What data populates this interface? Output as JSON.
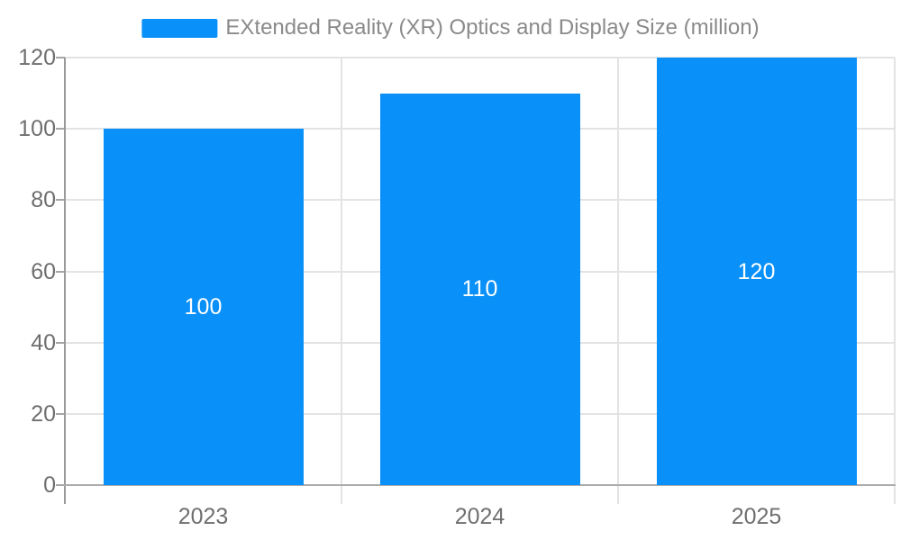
{
  "chart_data": {
    "type": "bar",
    "title": "EXtended Reality (XR) Optics and Display Size (million)",
    "categories": [
      "2023",
      "2024",
      "2025"
    ],
    "series": [
      {
        "name": "EXtended Reality (XR) Optics and Display Size (million)",
        "values": [
          100,
          110,
          120
        ],
        "color": "#0990f9"
      }
    ],
    "data_labels": [
      "100",
      "110",
      "120"
    ],
    "xlabel": "",
    "ylabel": "",
    "ylim": [
      0,
      120
    ],
    "ytick_step": 20,
    "ytick_labels": [
      "0",
      "20",
      "40",
      "60",
      "80",
      "100",
      "120"
    ],
    "grid": true,
    "legend_position": "top-center",
    "colors": {
      "bar": "#0990f9",
      "bar_label": "#ffffff",
      "legend_text": "#8a8a8a",
      "axis_label": "#6f6f6f",
      "grid_line": "#e3e3e3",
      "axis_line": "#a6a6a6",
      "background": "#ffffff"
    }
  }
}
